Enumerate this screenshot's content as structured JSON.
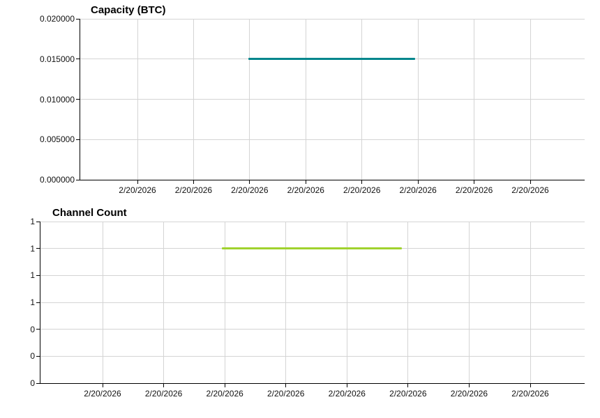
{
  "colors": {
    "grid": "#d4d4d4",
    "axis": "#000000",
    "tick_text": "#111111",
    "capacity_line": "#00868c",
    "channel_count_line": "#a0d22e"
  },
  "chart_data": [
    {
      "id": "capacity",
      "type": "line",
      "title": "Capacity (BTC)",
      "xlabel": "",
      "ylabel": "",
      "ylim": [
        0,
        0.02
      ],
      "y_tick_values": [
        0.02,
        0.015,
        0.01,
        0.005,
        0
      ],
      "y_tick_labels": [
        "0.020000",
        "0.015000",
        "0.010000",
        "0.005000",
        "0.000000"
      ],
      "x_tick_labels": [
        "2/20/2026",
        "2/20/2026",
        "2/20/2026",
        "2/20/2026",
        "2/20/2026",
        "2/20/2026",
        "2/20/2026",
        "2/20/2026"
      ],
      "grid": true,
      "legend": "none",
      "series": [
        {
          "name": "Capacity (BTC)",
          "slug": "capacity",
          "color": "#00868c",
          "value": 0.015,
          "x_extent_frac": [
            0.333,
            0.664
          ]
        }
      ]
    },
    {
      "id": "channel-count",
      "type": "line",
      "title": "Channel Count",
      "xlabel": "",
      "ylabel": "",
      "ylim": [
        0,
        1.2
      ],
      "y_tick_values": [
        1.2,
        1.0,
        0.8,
        0.6,
        0.4,
        0.2,
        0
      ],
      "y_tick_labels": [
        "1",
        "1",
        "1",
        "1",
        "0",
        "0",
        "0"
      ],
      "x_tick_labels": [
        "2/20/2026",
        "2/20/2026",
        "2/20/2026",
        "2/20/2026",
        "2/20/2026",
        "2/20/2026",
        "2/20/2026",
        "2/20/2026"
      ],
      "grid": true,
      "legend": "none",
      "series": [
        {
          "name": "Channel Count",
          "slug": "channel-count",
          "color": "#a0d22e",
          "value": 1,
          "x_extent_frac": [
            0.333,
            0.664
          ]
        }
      ]
    }
  ]
}
